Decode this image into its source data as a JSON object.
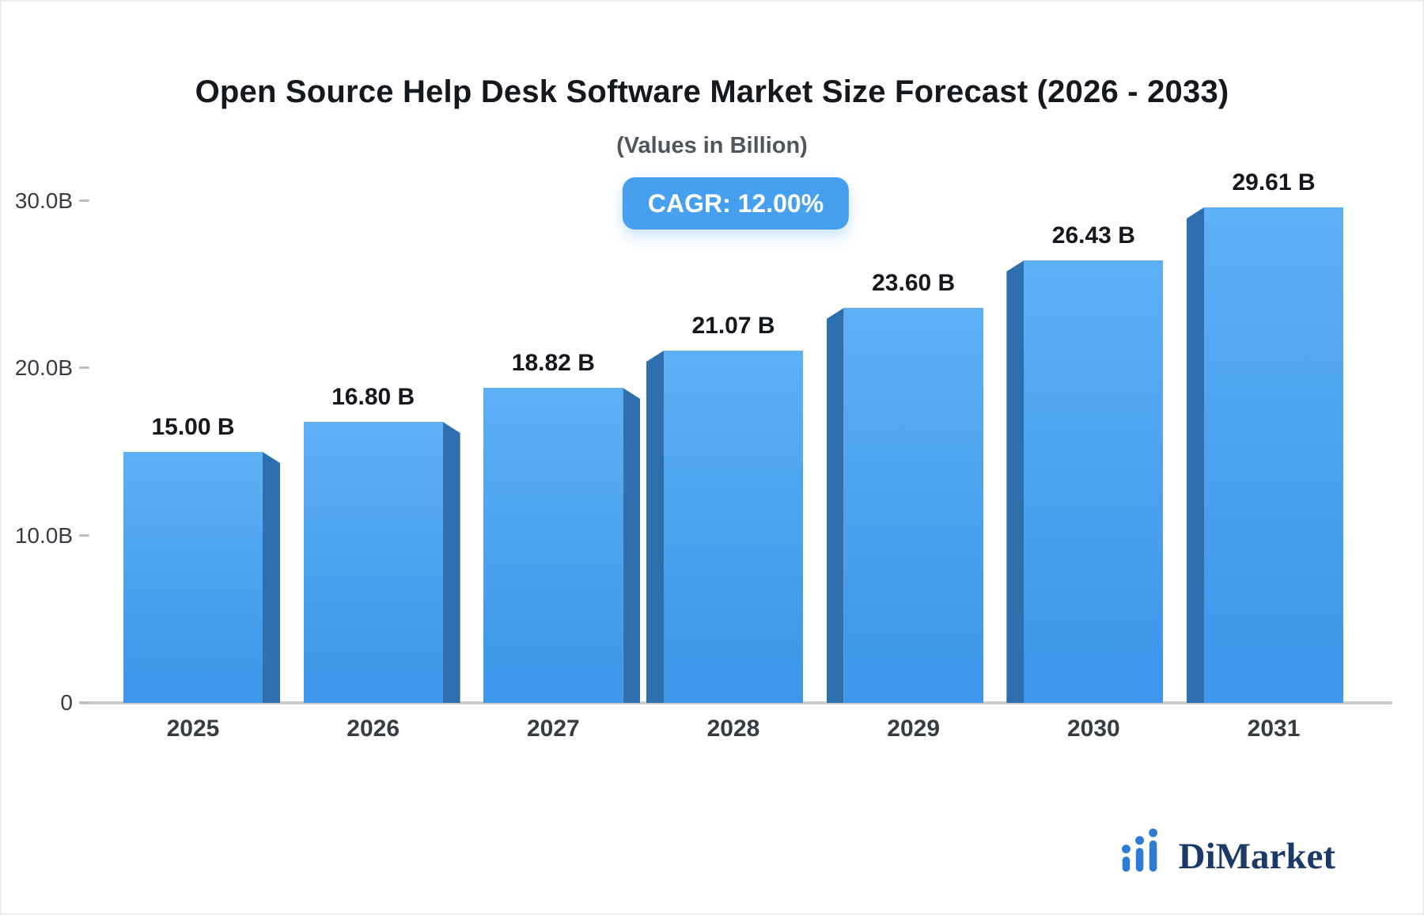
{
  "chart_data": {
    "type": "bar",
    "title": "Open Source Help Desk Software Market Size Forecast (2026 - 2033)",
    "subtitle": "(Values in Billion)",
    "annotation": "CAGR: 12.00%",
    "categories": [
      "2025",
      "2026",
      "2027",
      "2028",
      "2029",
      "2030",
      "2031"
    ],
    "values": [
      15.0,
      16.8,
      18.82,
      21.07,
      23.6,
      26.43,
      29.61
    ],
    "value_labels": [
      "15.00 B",
      "16.80 B",
      "18.82 B",
      "21.07 B",
      "23.60 B",
      "26.43 B",
      "29.61 B"
    ],
    "xlabel": "",
    "ylabel": "",
    "ylim": [
      0,
      30
    ],
    "ytick_values": [
      0,
      10,
      20,
      30
    ],
    "ytick_labels": [
      "0",
      "10.0B",
      "20.0B",
      "30.0B"
    ],
    "grid": false,
    "legend": false
  },
  "colors": {
    "bar_front": "#3E97EA",
    "bar_front_light": "#5DB0F4",
    "bar_side": "#2E6FAD",
    "badge_bg": "#47A0EF",
    "badge_text": "#FFFFFF",
    "title_text": "#15181E",
    "subtitle_text": "#50555C",
    "axis_text": "#373C43",
    "axis_line": "#C9CDD2",
    "logo_text": "#1B3A68",
    "logo_icon": "#2E7CD6"
  },
  "brand": {
    "name": "DiMarket"
  }
}
